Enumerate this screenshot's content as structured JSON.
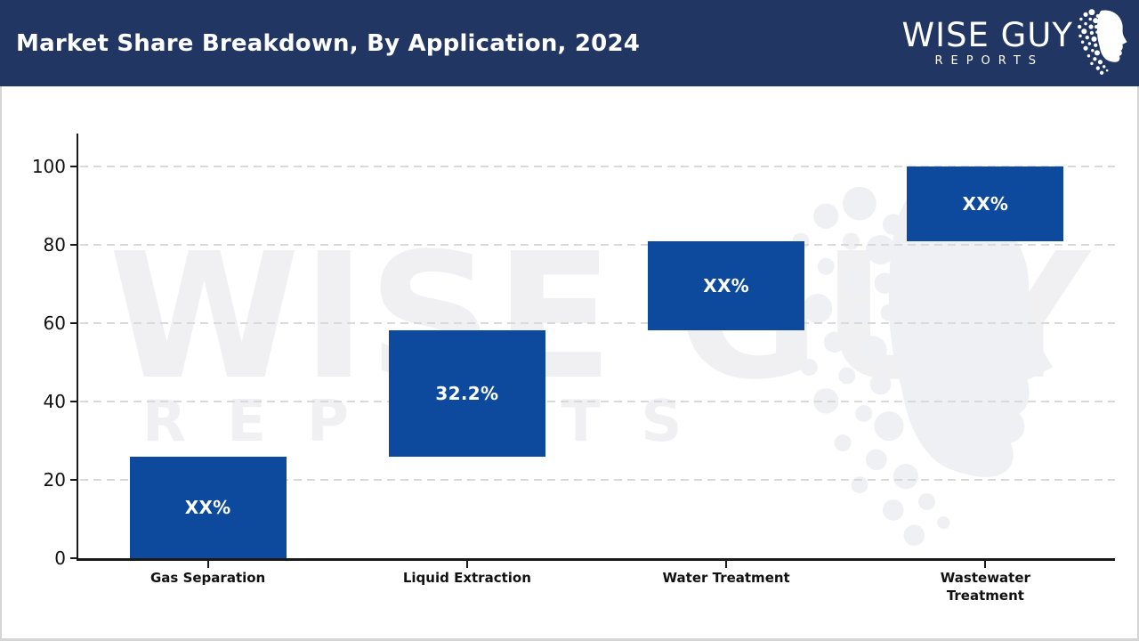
{
  "header": {
    "title": "Market Share Breakdown, By Application, 2024",
    "bg_color": "#213663",
    "logo": {
      "name": "WISE GUY",
      "tagline": "REPORTS"
    }
  },
  "watermark": {
    "word": "WISE GUY",
    "tagline": "REPORTS"
  },
  "chart_data": {
    "type": "bar",
    "subtype": "waterfall",
    "title": "Market Share Breakdown, By Application, 2024",
    "categories": [
      "Gas Separation",
      "Liquid Extraction",
      "Water Treatment",
      "Wastewater Treatment"
    ],
    "segments": [
      {
        "category": "Gas Separation",
        "start": 0,
        "end": 26,
        "value": 26,
        "label": "XX%"
      },
      {
        "category": "Liquid Extraction",
        "start": 26,
        "end": 58.2,
        "value": 32.2,
        "label": "32.2%"
      },
      {
        "category": "Water Treatment",
        "start": 58.2,
        "end": 81,
        "value": 22.8,
        "label": "XX%"
      },
      {
        "category": "Wastewater Treatment",
        "start": 81,
        "end": 100,
        "value": 19,
        "label": "XX%"
      }
    ],
    "xlabel": "",
    "ylabel": "",
    "ylim": [
      0,
      100
    ],
    "yticks": [
      0,
      20,
      40,
      60,
      80,
      100
    ],
    "grid": "horizontal-dashed",
    "legend": "none",
    "bar_color": "#0d4a9e",
    "bar_label_color": "#ffffff",
    "axis_color": "#1a1a1a",
    "gridline_color": "#d9d9d9"
  }
}
